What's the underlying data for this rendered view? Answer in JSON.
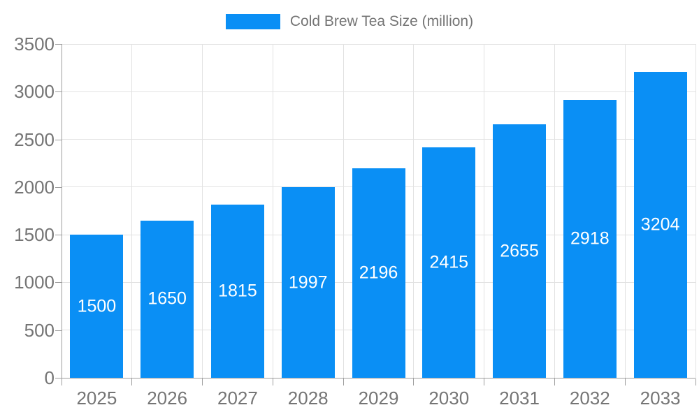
{
  "legend": {
    "label": "Cold Brew Tea Size (million)"
  },
  "chart_data": {
    "type": "bar",
    "title": "Cold Brew Tea Size (million)",
    "categories": [
      "2025",
      "2026",
      "2027",
      "2028",
      "2029",
      "2030",
      "2031",
      "2032",
      "2033"
    ],
    "values": [
      1500,
      1650,
      1815,
      1997,
      2196,
      2415,
      2655,
      2918,
      3204
    ],
    "xlabel": "",
    "ylabel": "",
    "ylim": [
      0,
      3500
    ],
    "yticks": [
      0,
      500,
      1000,
      1500,
      2000,
      2500,
      3000,
      3500
    ],
    "grid": true,
    "legend_position": "top",
    "bar_color": "#0a8ff5",
    "value_label_color": "#ffffff",
    "axis_label_color": "#757575",
    "grid_color": "#e2e2e2",
    "axis_line_color": "#9e9e9e"
  }
}
